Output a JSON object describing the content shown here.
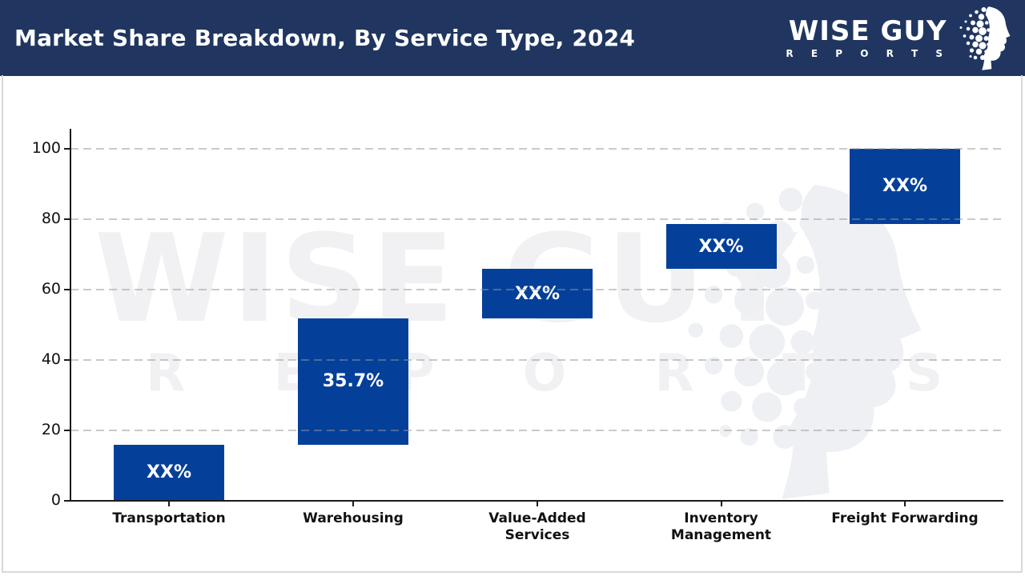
{
  "header": {
    "title": "Market Share Breakdown, By Service Type, 2024",
    "logo": {
      "main": "WISE GUY",
      "sub": "R E P O R T S"
    }
  },
  "watermark": {
    "line1": "WISE GUY",
    "line2": "R E P O R T S"
  },
  "chart_data": {
    "type": "bar",
    "subtype": "waterfall",
    "title": "Market Share Breakdown, By Service Type, 2024",
    "xlabel": "",
    "ylabel": "",
    "ylim": [
      0,
      100
    ],
    "yticks": [
      0,
      20,
      40,
      60,
      80,
      100
    ],
    "grid": "horizontal-dashed",
    "legend": "none",
    "bar_color": "#04409a",
    "label_color": "#ffffff",
    "categories": [
      "Transportation",
      "Warehousing",
      "Value-Added Services",
      "Inventory Management",
      "Freight Forwarding"
    ],
    "segments": [
      {
        "category": "Transportation",
        "start": 0,
        "end": 16,
        "label": "XX%"
      },
      {
        "category": "Warehousing",
        "start": 16,
        "end": 51.7,
        "label": "35.7%"
      },
      {
        "category": "Value-Added Services",
        "start": 51.7,
        "end": 65.8,
        "label": "XX%"
      },
      {
        "category": "Inventory Management",
        "start": 65.8,
        "end": 78.6,
        "label": "XX%"
      },
      {
        "category": "Freight Forwarding",
        "start": 78.6,
        "end": 100,
        "label": "XX%"
      }
    ]
  }
}
